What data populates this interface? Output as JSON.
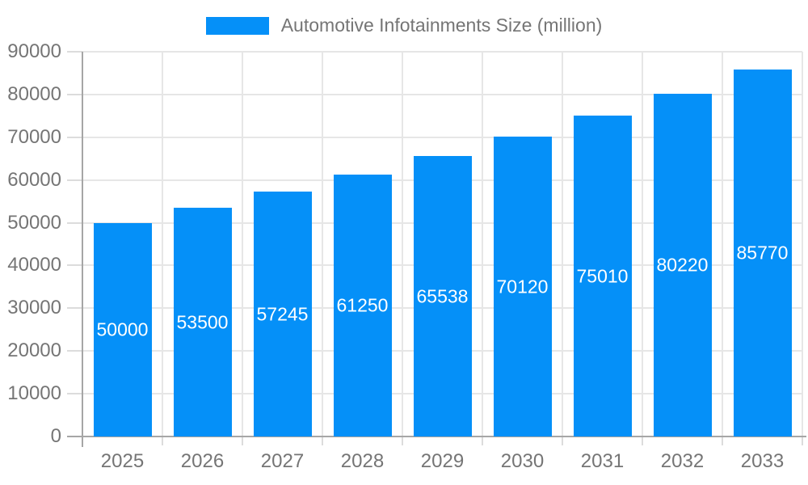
{
  "legend": {
    "swatch_color": "#0590f8"
  },
  "colors": {
    "bar": "#0590f8",
    "grid": "#e6e6e6",
    "axis": "#a6a6a6",
    "tick": "#dcdcdc",
    "label_text": "#757575",
    "value_text": "#ffffff",
    "background": "#ffffff"
  },
  "chart_data": {
    "type": "bar",
    "title": "Automotive Infotainments Size (million)",
    "categories": [
      "2025",
      "2026",
      "2027",
      "2028",
      "2029",
      "2030",
      "2031",
      "2032",
      "2033"
    ],
    "values": [
      50000,
      53500,
      57245,
      61250,
      65538,
      70120,
      75010,
      80220,
      85770
    ],
    "value_labels": [
      "50000",
      "53500",
      "57245",
      "61250",
      "65538",
      "70120",
      "75010",
      "80220",
      "85770"
    ],
    "xlabel": "",
    "ylabel": "",
    "ylim": [
      0,
      90000
    ],
    "ytick_step": 10000,
    "ytick_labels": [
      "0",
      "10000",
      "20000",
      "30000",
      "40000",
      "50000",
      "60000",
      "70000",
      "80000",
      "90000"
    ],
    "grid": true,
    "legend_position": "top-center",
    "value_label_position": "inside-center"
  }
}
